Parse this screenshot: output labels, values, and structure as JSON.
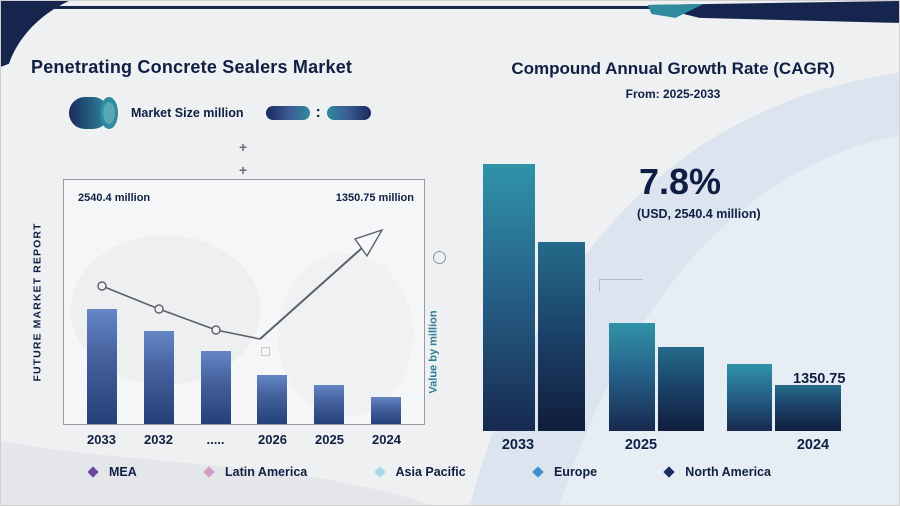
{
  "header": {
    "title": "Penetrating Concrete Sealers Market",
    "market_size_label": "Market Size million",
    "pill_separator": ":"
  },
  "watermark": "FUTURE MARKET REPORT",
  "legend": {
    "items": [
      {
        "label": "MEA",
        "color": "#6a4c9c"
      },
      {
        "label": "Latin America",
        "color": "#d49bc6"
      },
      {
        "label": "Asia Pacific",
        "color": "#a7d8ec"
      },
      {
        "label": "Europe",
        "color": "#3e8ed0"
      },
      {
        "label": "North America",
        "color": "#1b2a5e"
      }
    ]
  },
  "colors": {
    "navy": "#16254e",
    "teal": "#2e8a9c",
    "text": "#0f1f44"
  },
  "chart_data": [
    {
      "type": "bar",
      "title": "Penetrating Concrete Sealers Market - Market Size million",
      "categories": [
        "2033",
        "2032",
        ".....",
        "2026",
        "2025",
        "2024"
      ],
      "bar_heights_pct": [
        47,
        38,
        30,
        20,
        16,
        11
      ],
      "values_labeled": {
        "2033": 2540.4,
        "2024": 1350.75
      },
      "annotation_left": "2540.4 million",
      "annotation_right": "1350.75 million",
      "ylabel": "Market Size million",
      "grid": false,
      "legend_position": "none",
      "trend": "marker line declining across first four bars, then outlined arrow rising to upper right"
    },
    {
      "type": "bar",
      "title": "Compound Annual Growth Rate (CAGR)",
      "subtitle": "From: 2025-2033",
      "cagr_label": "7.8%",
      "cagr_percent": 7.8,
      "usd_note": "(USD, 2540.4 million)",
      "end_value_label": "1350.75",
      "ylabel": "Value by million",
      "categories": [
        "2033",
        "2025",
        "2024"
      ],
      "series": [
        {
          "name": "value-primary",
          "heights_pct": [
            99,
            40,
            25
          ]
        },
        {
          "name": "value-secondary",
          "heights_pct": [
            70,
            31,
            17
          ]
        }
      ],
      "grid": false,
      "legend_position": "none"
    }
  ]
}
